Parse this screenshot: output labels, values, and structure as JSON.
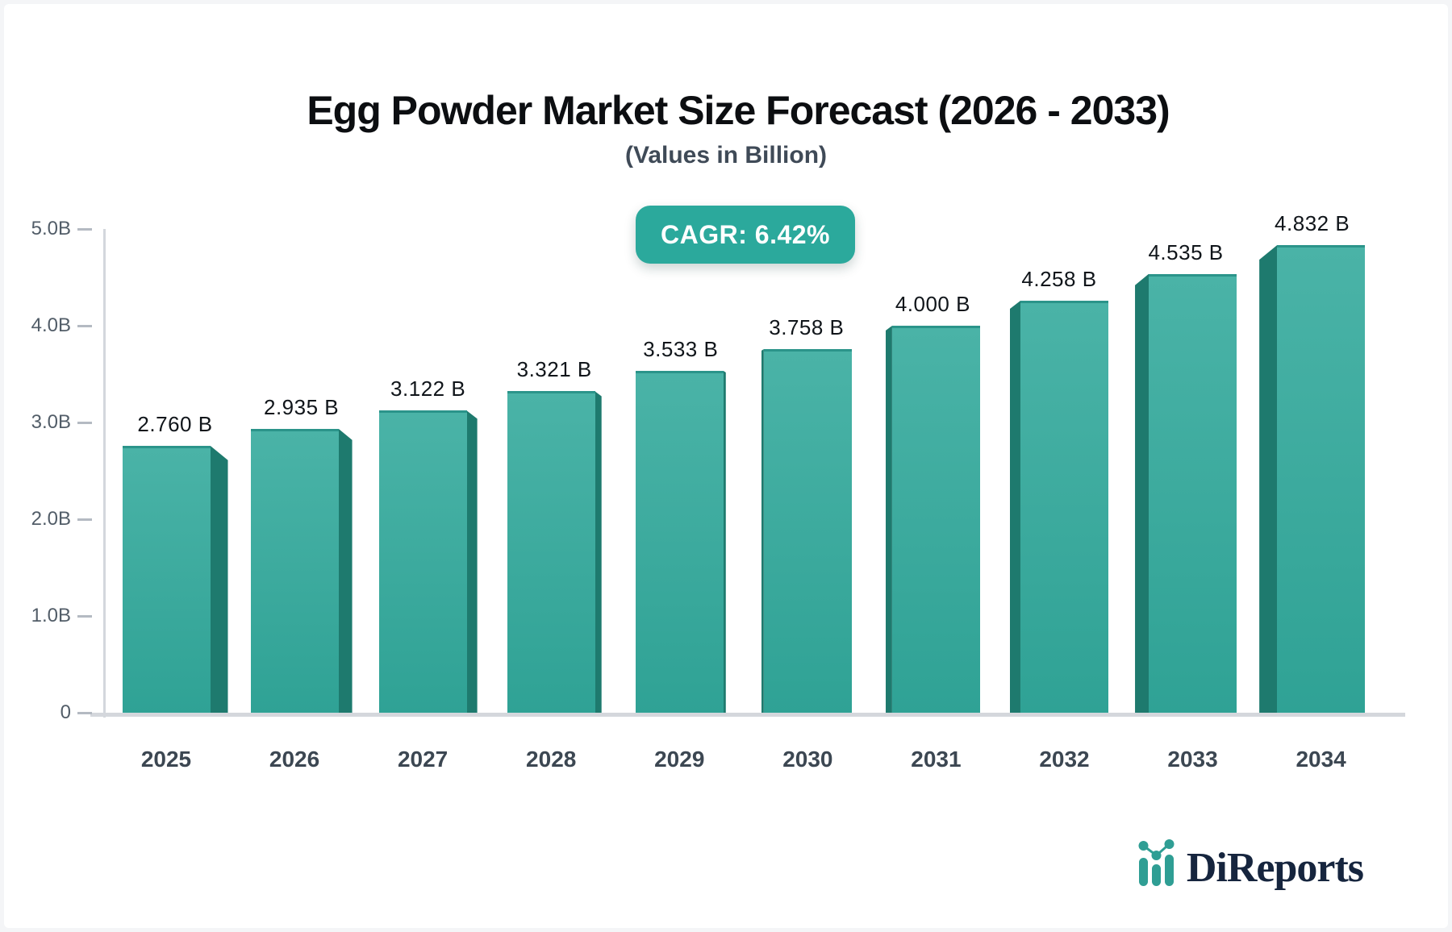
{
  "header": {
    "title": "Egg Powder Market Size Forecast (2026 - 2033)",
    "subtitle": "(Values in Billion)",
    "cagr_label": "CAGR: 6.42%"
  },
  "chart_data": {
    "type": "bar",
    "title": "Egg Powder Market Size Forecast (2026 - 2033)",
    "subtitle": "(Values in Billion)",
    "cagr": "6.42%",
    "categories": [
      "2025",
      "2026",
      "2027",
      "2028",
      "2029",
      "2030",
      "2031",
      "2032",
      "2033",
      "2034"
    ],
    "values": [
      2.76,
      2.935,
      3.122,
      3.321,
      3.533,
      3.758,
      4.0,
      4.258,
      4.535,
      4.832
    ],
    "value_labels": [
      "2.760 B",
      "2.935 B",
      "3.122 B",
      "3.321 B",
      "3.533 B",
      "3.758 B",
      "4.000 B",
      "4.258 B",
      "4.535 B",
      "4.832 B"
    ],
    "xlabel": "",
    "ylabel": "",
    "ylim": [
      0,
      5
    ],
    "yticks": [
      {
        "label": "5.0B",
        "value": 5.0
      },
      {
        "label": "4.0B",
        "value": 4.0
      },
      {
        "label": "3.0B",
        "value": 3.0
      },
      {
        "label": "2.0B",
        "value": 2.0
      },
      {
        "label": "1.0B",
        "value": 1.0
      },
      {
        "label": "0",
        "value": 0.0
      }
    ],
    "grid": false,
    "legend": null,
    "bar_face_color_top": "#4ab3a7",
    "bar_face_color_bottom": "#2fa295",
    "bar_side_color": "#1e7a6e",
    "style": "3d-perspective"
  },
  "branding": {
    "logo_text": "DiReports",
    "logo_color": "#16253e",
    "logo_icon": "bar-line-chart-icon",
    "logo_icon_color": "#2f9e94"
  },
  "colors": {
    "accent_teal": "#2ba99c",
    "axis_gray": "#d3d7dd",
    "tick_label_gray": "#525d68",
    "x_label_dark": "#3c4752",
    "background": "#ffffff",
    "frame": "#f4f5f7"
  }
}
